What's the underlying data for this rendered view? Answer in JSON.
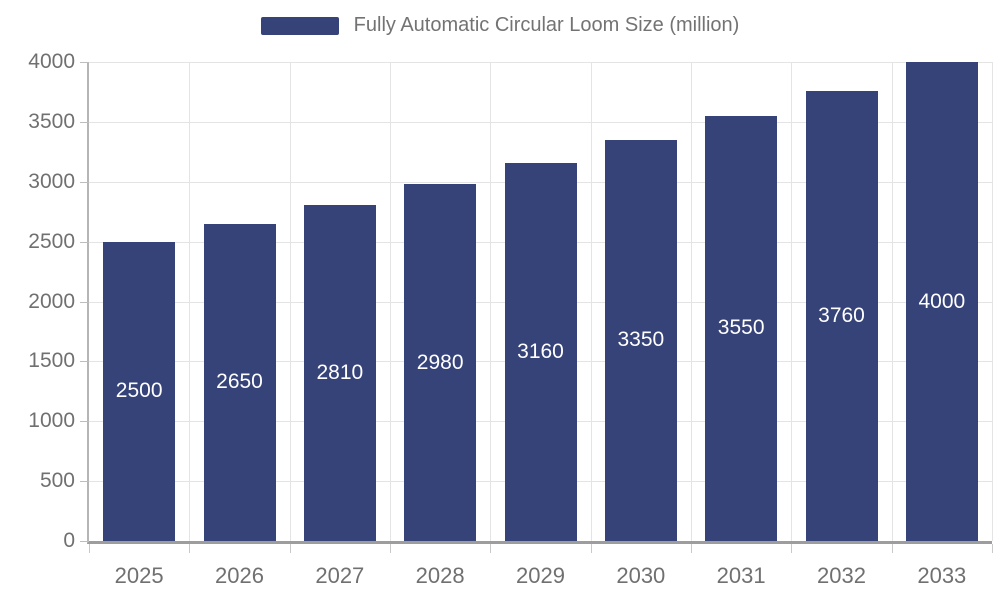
{
  "legend": {
    "label": "Fully Automatic Circular Loom Size (million)"
  },
  "chart_data": {
    "type": "bar",
    "title": "Fully Automatic Circular Loom Size (million)",
    "categories": [
      "2025",
      "2026",
      "2027",
      "2028",
      "2029",
      "2030",
      "2031",
      "2032",
      "2033"
    ],
    "values": [
      2500,
      2650,
      2810,
      2980,
      3160,
      3350,
      3550,
      3760,
      4000
    ],
    "series_name": "Fully Automatic Circular Loom Size (million)",
    "xlabel": "",
    "ylabel": "",
    "ylim": [
      0,
      4000
    ],
    "yticks": [
      0,
      500,
      1000,
      1500,
      2000,
      2500,
      3000,
      3500,
      4000
    ],
    "grid": true,
    "legend_position": "top-center",
    "bar_color": "#364379",
    "bar_label_color": "#ffffff",
    "axis_text_color": "#707070",
    "legend_text_color": "#737373",
    "gridline_color": "#e4e4e4"
  }
}
